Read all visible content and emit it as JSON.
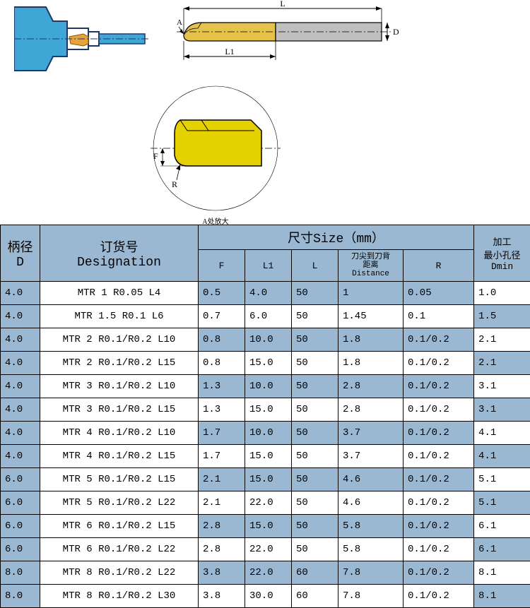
{
  "diagram": {
    "labels": {
      "L": "L",
      "L1": "L1",
      "D": "D",
      "A": "A",
      "F": "F",
      "R": "R"
    },
    "caption": "A处放大",
    "colors": {
      "holder_blue": "#3fa7d6",
      "tool_gold": "#e6c24a",
      "tool_gold_dark": "#c9a227",
      "shank_grey": "#bfbfbf",
      "outline": "#1a3a6e",
      "black": "#000000"
    }
  },
  "table": {
    "header_bg": "#9bb8d3",
    "headers": {
      "d_line1": "柄径",
      "d_line2": "D",
      "desig_line1": "订货号",
      "desig_line2": "Designation",
      "size": "尺寸Size（mm）",
      "f": "F",
      "l1": "L1",
      "l": "L",
      "dist_line1": "刀尖到刀背",
      "dist_line2": "距离",
      "dist_line3": "Distance",
      "r": "R",
      "dmin_line1": "加工",
      "dmin_line2": "最小孔径",
      "dmin_line3": "Dmin"
    },
    "col_widths": {
      "d": 56,
      "desig": 224,
      "f": 66,
      "l1": 66,
      "l": 66,
      "dist": 92,
      "r": 100,
      "dmin": 80
    },
    "rows": [
      {
        "d": "4.0",
        "desig": "MTR  1 R0.05 L4",
        "f": "0.5",
        "l1": "4.0",
        "l": "50",
        "dist": "1",
        "r": "0.05",
        "dmin": "1.0"
      },
      {
        "d": "4.0",
        "desig": "MTR  1.5 R0.1 L6",
        "f": "0.7",
        "l1": "6.0",
        "l": "50",
        "dist": "1.45",
        "r": "0.1",
        "dmin": "1.5"
      },
      {
        "d": "4.0",
        "desig": "MTR  2  R0.1/R0.2 L10",
        "f": "0.8",
        "l1": "10.0",
        "l": "50",
        "dist": "1.8",
        "r": "0.1/0.2",
        "dmin": "2.1"
      },
      {
        "d": "4.0",
        "desig": "MTR  2  R0.1/R0.2 L15",
        "f": "0.8",
        "l1": "15.0",
        "l": "50",
        "dist": "1.8",
        "r": "0.1/0.2",
        "dmin": "2.1"
      },
      {
        "d": "4.0",
        "desig": "MTR  3  R0.1/R0.2 L10",
        "f": "1.3",
        "l1": "10.0",
        "l": "50",
        "dist": "2.8",
        "r": "0.1/0.2",
        "dmin": "3.1"
      },
      {
        "d": "4.0",
        "desig": "MTR  3  R0.1/R0.2 L15",
        "f": "1.3",
        "l1": "15.0",
        "l": "50",
        "dist": "2.8",
        "r": "0.1/0.2",
        "dmin": "3.1"
      },
      {
        "d": "4.0",
        "desig": "MTR  4  R0.1/R0.2 L10",
        "f": "1.7",
        "l1": "10.0",
        "l": "50",
        "dist": "3.7",
        "r": "0.1/0.2",
        "dmin": "4.1"
      },
      {
        "d": "4.0",
        "desig": "MTR  4  R0.1/R0.2 L15",
        "f": "1.7",
        "l1": "15.0",
        "l": "50",
        "dist": "3.7",
        "r": "0.1/0.2",
        "dmin": "4.1"
      },
      {
        "d": "6.0",
        "desig": "MTR  5  R0.1/R0.2 L15",
        "f": "2.1",
        "l1": "15.0",
        "l": "50",
        "dist": "4.6",
        "r": "0.1/0.2",
        "dmin": "5.1"
      },
      {
        "d": "6.0",
        "desig": "MTR  5  R0.1/R0.2 L22",
        "f": "2.1",
        "l1": "22.0",
        "l": "50",
        "dist": "4.6",
        "r": "0.1/0.2",
        "dmin": "5.1"
      },
      {
        "d": "6.0",
        "desig": "MTR  6  R0.1/R0.2 L15",
        "f": "2.8",
        "l1": "15.0",
        "l": "50",
        "dist": "5.8",
        "r": "0.1/0.2",
        "dmin": "6.1"
      },
      {
        "d": "6.0",
        "desig": "MTR  6  R0.1/R0.2 L22",
        "f": "2.8",
        "l1": "22.0",
        "l": "50",
        "dist": "5.8",
        "r": "0.1/0.2",
        "dmin": "6.1"
      },
      {
        "d": "8.0",
        "desig": "MTR  8  R0.1/R0.2 L22",
        "f": "3.8",
        "l1": "22.0",
        "l": "60",
        "dist": "7.8",
        "r": "0.1/0.2",
        "dmin": "8.1"
      },
      {
        "d": "8.0",
        "desig": "MTR  8  R0.1/R0.2 L30",
        "f": "3.8",
        "l1": "30.0",
        "l": "60",
        "dist": "7.8",
        "r": "0.1/0.2",
        "dmin": "8.1"
      }
    ]
  }
}
